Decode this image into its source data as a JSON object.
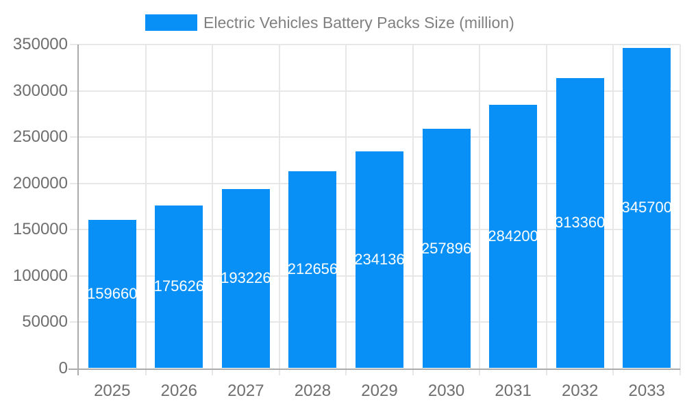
{
  "legend": {
    "label": "Electric Vehicles Battery Packs Size (million)"
  },
  "chart_data": {
    "type": "bar",
    "title": "Electric Vehicles Battery Packs Size (million)",
    "categories": [
      "2025",
      "2026",
      "2027",
      "2028",
      "2029",
      "2030",
      "2031",
      "2032",
      "2033"
    ],
    "values": [
      159660,
      175626,
      193226,
      212656,
      234136,
      257896,
      284200,
      313360,
      345700
    ],
    "bar_labels": [
      "159660",
      "175626",
      "193226",
      "212656",
      "234136",
      "257896",
      "284200",
      "313360",
      "345700"
    ],
    "xlabel": "",
    "ylabel": "",
    "ylim": [
      0,
      350000
    ],
    "yticks": [
      0,
      50000,
      100000,
      150000,
      200000,
      250000,
      300000,
      350000
    ],
    "grid": true,
    "legend_position": "top-center",
    "bar_label_position": "inside-center",
    "colors": {
      "bar": "#0890F6",
      "bar_label_text": "#FFFFFF",
      "gridline": "#E7E7E7",
      "axis_line": "#ACACAC",
      "tick_text": "#6E6E6E",
      "legend_text": "#808080",
      "background": "#FFFFFF"
    }
  }
}
